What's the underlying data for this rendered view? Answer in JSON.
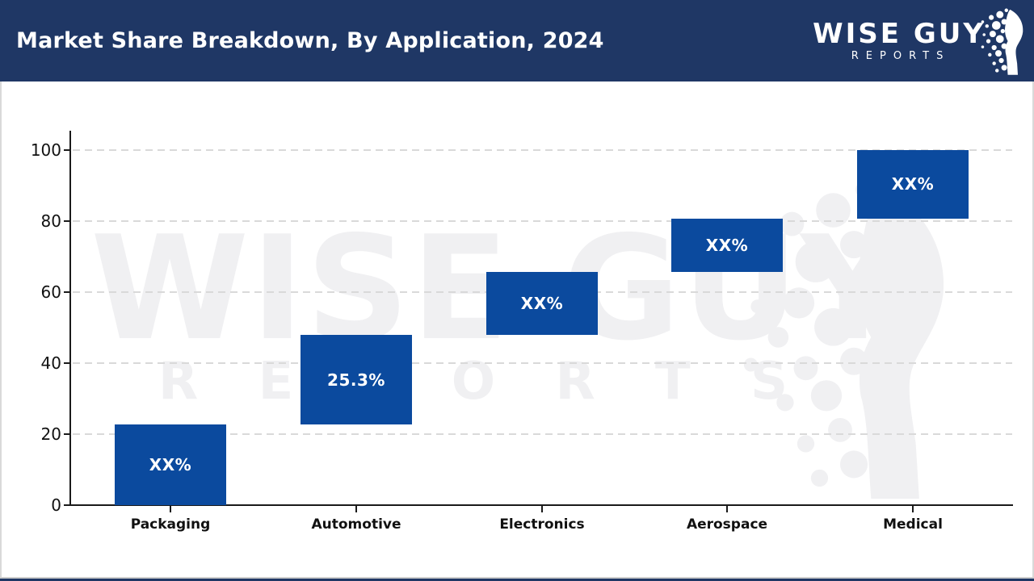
{
  "header": {
    "title": "Market Share Breakdown, By Application, 2024",
    "logo": {
      "line1": "WISE GUY",
      "line2": "REPORTS"
    }
  },
  "watermark": {
    "line1": "WISE GUY",
    "line2": "R E P O R T S"
  },
  "colors": {
    "header_bg": "#1f3765",
    "footer_bg": "#1f3765",
    "bar": "#0b4a9e",
    "grid": "#d9d9d9",
    "axis": "#1a1a1a",
    "bar_label_text": "#ffffff",
    "watermark": "#f0f0f2"
  },
  "chart_data": {
    "type": "bar",
    "subtype": "waterfall-floating-bars",
    "title": "Market Share Breakdown, By Application, 2024",
    "categories": [
      "Packaging",
      "Automotive",
      "Electronics",
      "Aerospace",
      "Medical"
    ],
    "segments": [
      {
        "category": "Packaging",
        "start": 0,
        "end": 22.6,
        "label": "XX%"
      },
      {
        "category": "Automotive",
        "start": 22.6,
        "end": 47.9,
        "label": "25.3%"
      },
      {
        "category": "Electronics",
        "start": 47.9,
        "end": 65.6,
        "label": "XX%"
      },
      {
        "category": "Aerospace",
        "start": 65.6,
        "end": 80.5,
        "label": "XX%"
      },
      {
        "category": "Medical",
        "start": 80.6,
        "end": 100,
        "label": "XX%"
      }
    ],
    "y_ticks": [
      0,
      20,
      40,
      60,
      80,
      100
    ],
    "ylim": [
      0,
      105
    ],
    "xlabel": "",
    "ylabel": "",
    "grid": "horizontal-dashed",
    "legend": "none"
  }
}
